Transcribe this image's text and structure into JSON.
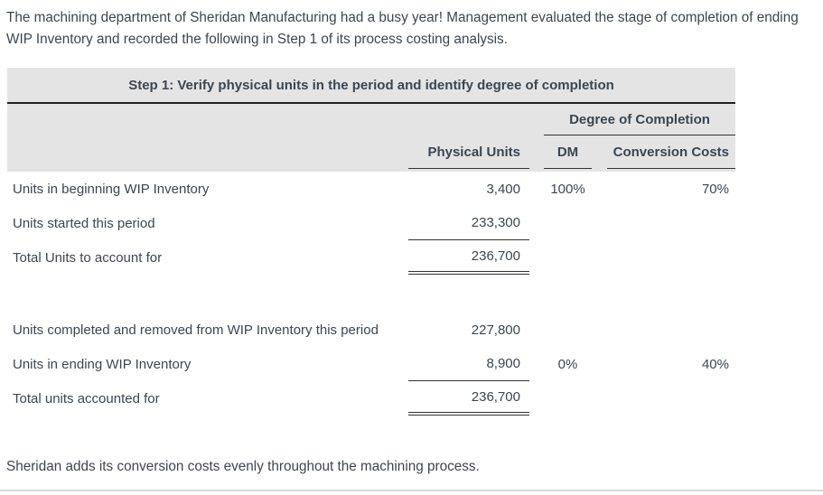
{
  "colors": {
    "text": "#3c4650",
    "band": "#e4e4e4",
    "rule_dark": "#222222",
    "underline": "#333333",
    "divider": "#d9d9d9"
  },
  "intro": "The machining department of Sheridan Manufacturing had a busy year! Management evaluated the stage of completion of ending WIP Inventory and recorded the following in Step 1 of its process costing analysis.",
  "step_table": {
    "title": "Step 1: Verify physical units in the period and identify degree of completion",
    "group_header": "Degree of Completion",
    "columns": {
      "physical_units": "Physical Units",
      "dm": "DM",
      "conversion_costs": "Conversion Costs"
    },
    "rows": [
      {
        "label": "Units in beginning WIP Inventory",
        "physical_units": "3,400",
        "dm": "100%",
        "conversion_costs": "70%"
      },
      {
        "label": "Units started this period",
        "physical_units": "233,300",
        "dm": "",
        "conversion_costs": ""
      },
      {
        "label": "Total Units to account for",
        "physical_units": "236,700",
        "dm": "",
        "conversion_costs": ""
      },
      {
        "label": "Units completed and removed from WIP Inventory this period",
        "physical_units": "227,800",
        "dm": "",
        "conversion_costs": ""
      },
      {
        "label": "Units in ending WIP Inventory",
        "physical_units": "8,900",
        "dm": "0%",
        "conversion_costs": "40%"
      },
      {
        "label": "Total units accounted for",
        "physical_units": "236,700",
        "dm": "",
        "conversion_costs": ""
      }
    ]
  },
  "footnote": "Sheridan adds its conversion costs evenly throughout the machining process."
}
